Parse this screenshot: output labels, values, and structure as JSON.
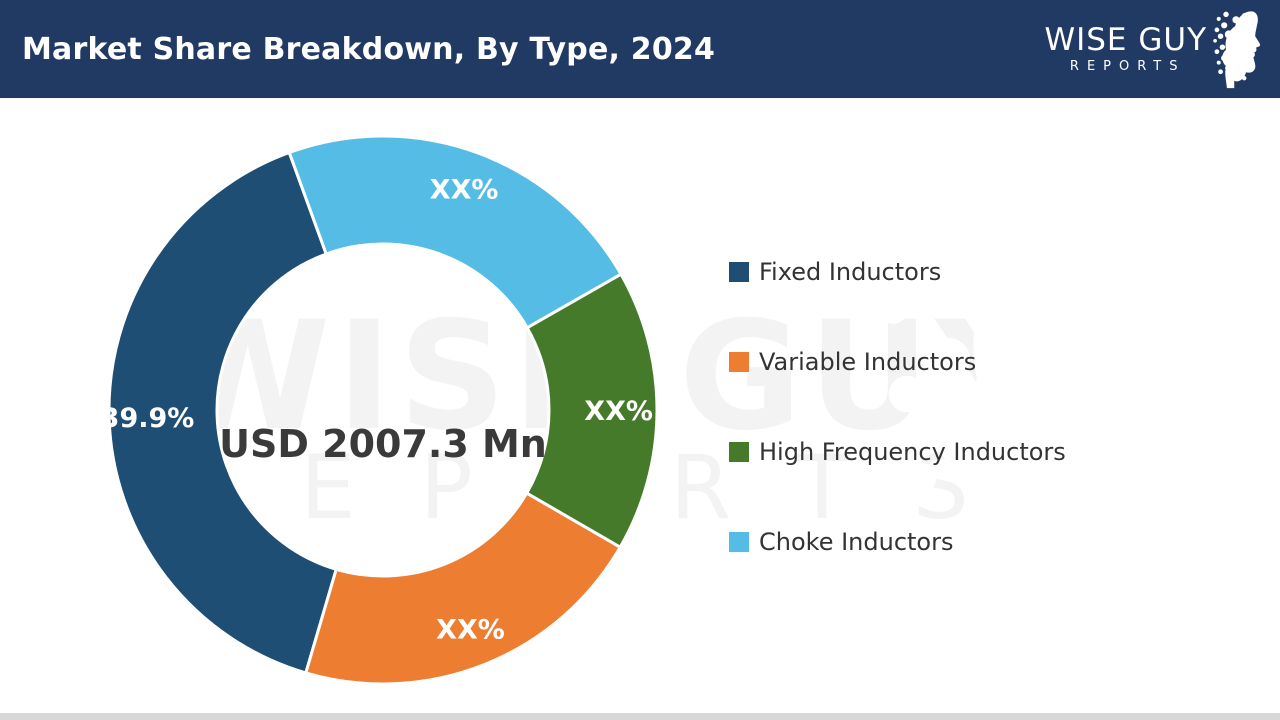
{
  "header": {
    "title": "Market Share Breakdown, By Type, 2024",
    "logo": {
      "line1": "WISE GUY",
      "line2": "REPORTS"
    },
    "bg_color": "#213A64"
  },
  "chart_data": {
    "type": "pie",
    "subtype": "donut",
    "center_label": "USD 2007.3 Mn",
    "start_angle_deg": -20,
    "direction": "counterclockwise",
    "inner_radius_ratio": 0.605,
    "slice_separator_color": "#ffffff",
    "label_color": "#ffffff",
    "segments": [
      {
        "label": "Fixed Inductors",
        "value_pct": 39.9,
        "display_label": "39.9%",
        "color": "#1F4E74"
      },
      {
        "label": "Variable Inductors",
        "value_pct": 21.2,
        "display_label": "XX%",
        "color": "#EC7D31"
      },
      {
        "label": "High Frequency Inductors",
        "value_pct": 16.6,
        "display_label": "XX%",
        "color": "#467A2B"
      },
      {
        "label": "Choke Inductors",
        "value_pct": 22.3,
        "display_label": "XX%",
        "color": "#55BCE5"
      }
    ],
    "legend_position": "right"
  },
  "watermark": {
    "line1": "WISE GUY",
    "line2": "R E P O R T S"
  },
  "footer": {
    "strip_color": "#D8D8D8"
  }
}
